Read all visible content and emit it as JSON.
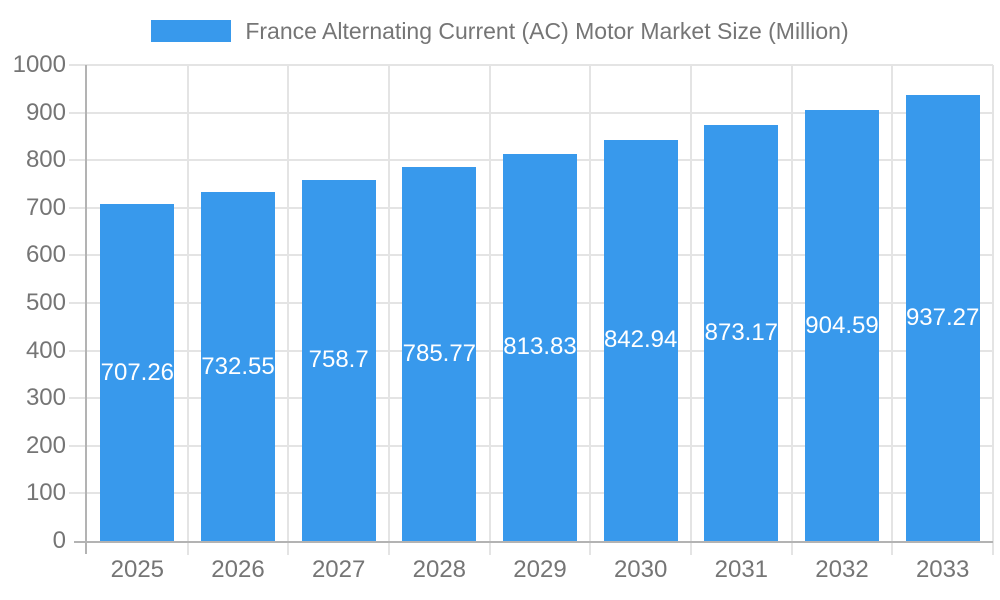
{
  "legend": {
    "label": "France Alternating Current (AC) Motor Market Size (Million)"
  },
  "chart_data": {
    "type": "bar",
    "title": "France Alternating Current (AC) Motor Market Size (Million)",
    "categories": [
      "2025",
      "2026",
      "2027",
      "2028",
      "2029",
      "2030",
      "2031",
      "2032",
      "2033"
    ],
    "series": [
      {
        "name": "France Alternating Current (AC) Motor Market Size (Million)",
        "values": [
          707.26,
          732.55,
          758.7,
          785.77,
          813.83,
          842.94,
          873.17,
          904.59,
          937.27
        ]
      }
    ],
    "value_labels": [
      "707.26",
      "732.55",
      "758.7",
      "785.77",
      "813.83",
      "842.94",
      "873.17",
      "904.59",
      "937.27"
    ],
    "xlabel": "",
    "ylabel": "",
    "ylim": [
      0,
      1000
    ],
    "yticks": [
      0,
      100,
      200,
      300,
      400,
      500,
      600,
      700,
      800,
      900,
      1000
    ],
    "grid": true,
    "legend_position": "top",
    "colors": {
      "bar": "#3899ec",
      "value_label": "#ffffff",
      "axis_text": "#757575",
      "grid": "#e4e4e4",
      "axis_line": "#b3b3b3"
    }
  }
}
